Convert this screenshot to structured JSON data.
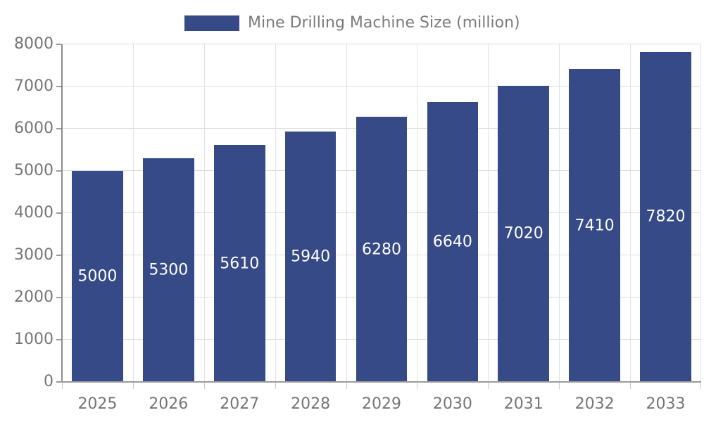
{
  "legend": {
    "label": "Mine Drilling Machine Size (million)"
  },
  "colors": {
    "bar": "#364a88",
    "value_label": "#ffffff",
    "axis_label": "#757575",
    "legend_text": "#7b7b7b"
  },
  "chart_data": {
    "type": "bar",
    "title": "Mine Drilling Machine Size (million)",
    "series_name": "Mine Drilling Machine Size (million)",
    "categories": [
      "2025",
      "2026",
      "2027",
      "2028",
      "2029",
      "2030",
      "2031",
      "2032",
      "2033"
    ],
    "values": [
      5000,
      5300,
      5610,
      5940,
      6280,
      6640,
      7020,
      7410,
      7820
    ],
    "value_labels": [
      "5000",
      "5300",
      "5610",
      "5940",
      "6280",
      "6640",
      "7020",
      "7410",
      "7820"
    ],
    "y_ticks": [
      "0",
      "1000",
      "2000",
      "3000",
      "4000",
      "5000",
      "6000",
      "7000",
      "8000"
    ],
    "ylim": [
      0,
      8000
    ],
    "ytick_step": 1000,
    "xlabel": "",
    "ylabel": "",
    "grid": true,
    "legend_position": "top",
    "value_label_position": "inside-center"
  }
}
